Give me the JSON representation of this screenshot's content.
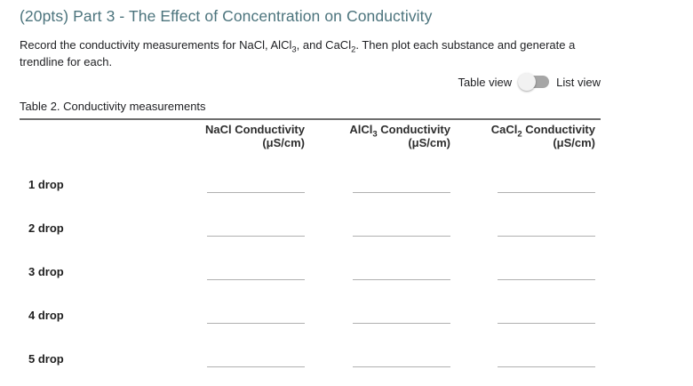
{
  "page": {
    "title": "(20pts) Part 3 - The Effect of Concentration on Conductivity",
    "title_color": "#4c747d",
    "background": "#ffffff"
  },
  "instructions": {
    "parts": [
      {
        "text": "Record the conductivity measurements for NaCl, AlCl"
      },
      {
        "text": "3",
        "sub": true
      },
      {
        "text": ", and CaCl"
      },
      {
        "text": "2",
        "sub": true
      },
      {
        "text": ". Then plot each substance and generate a trendline for each."
      }
    ]
  },
  "view_toggle": {
    "left_label": "Table view",
    "right_label": "List view",
    "state": "table",
    "track_color": "#a6a6a6",
    "thumb_color": "#f2f2f2"
  },
  "table": {
    "caption": "Table 2. Conductivity measurements",
    "columns": [
      {
        "formula": "NaCl",
        "subscript": "",
        "suffix": " Conductivity",
        "unit": "(μS/cm)"
      },
      {
        "formula": "AlCl",
        "subscript": "3",
        "suffix": " Conductivity",
        "unit": "(μS/cm)"
      },
      {
        "formula": "CaCl",
        "subscript": "2",
        "suffix": " Conductivity",
        "unit": "(μS/cm)"
      }
    ],
    "rows": [
      {
        "label": "1 drop",
        "values": [
          "",
          "",
          ""
        ]
      },
      {
        "label": "2 drop",
        "values": [
          "",
          "",
          ""
        ]
      },
      {
        "label": "3 drop",
        "values": [
          "",
          "",
          ""
        ]
      },
      {
        "label": "4 drop",
        "values": [
          "",
          "",
          ""
        ]
      },
      {
        "label": "5 drop",
        "values": [
          "",
          "",
          ""
        ]
      }
    ]
  }
}
